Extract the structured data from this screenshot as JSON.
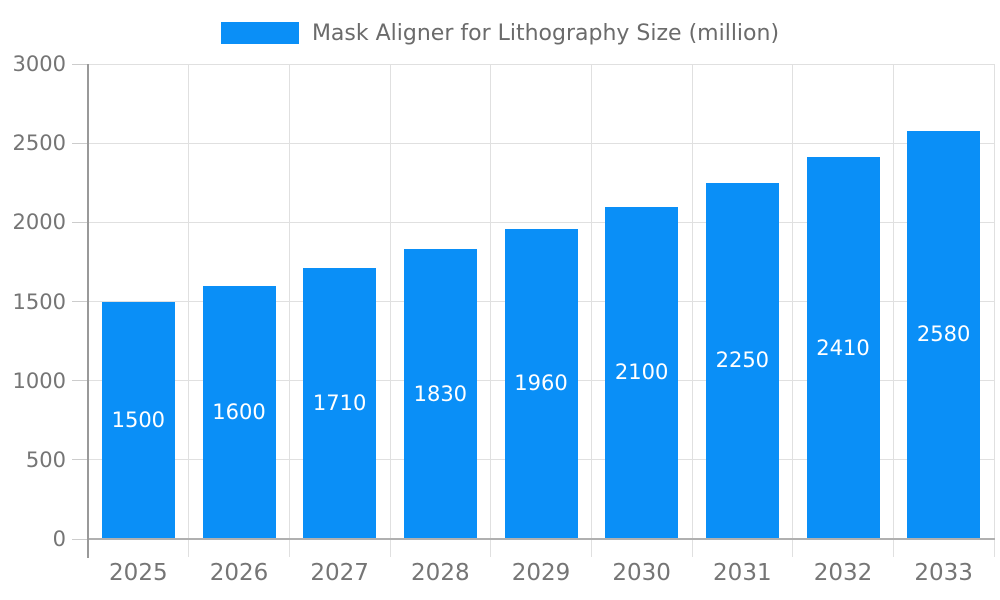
{
  "chart_data": {
    "type": "bar",
    "title": "Mask Aligner for Lithography Size (million)",
    "categories": [
      "2025",
      "2026",
      "2027",
      "2028",
      "2029",
      "2030",
      "2031",
      "2032",
      "2033"
    ],
    "values": [
      1500,
      1600,
      1710,
      1830,
      1960,
      2100,
      2250,
      2410,
      2580
    ],
    "xlabel": "",
    "ylabel": "",
    "ylim": [
      0,
      3000
    ],
    "yticks": [
      0,
      500,
      1000,
      1500,
      2000,
      2500,
      3000
    ],
    "grid": true,
    "legend_position": "top-center",
    "value_labels": "centered-inside-bars",
    "colors": {
      "bar": "#0a8ff7",
      "value_label": "#ffffff",
      "axis_text": "#757575",
      "title_text": "#6b6b6b",
      "gridline": "#e0e0e0",
      "tick": "#cccccc",
      "axis_line": "#999999",
      "baseline": "#b0b0b0",
      "background": "#ffffff"
    }
  }
}
